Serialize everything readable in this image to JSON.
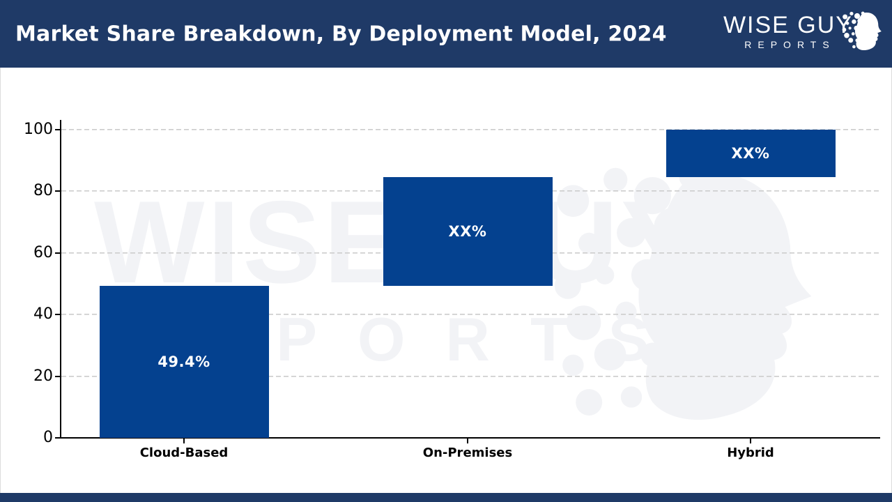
{
  "header": {
    "title": "Market Share Breakdown, By Deployment Model, 2024",
    "logo": {
      "line1": "WISE GUY",
      "line2": "REPORTS"
    }
  },
  "watermark": {
    "line1": "WISE GUY",
    "line2": "REPORTS"
  },
  "colors": {
    "banner": "#1F3A67",
    "bar": "#04418F",
    "bar_label": "#FFFFFF",
    "gridline": "#CCCCCC",
    "axis": "#000000",
    "watermark": "#F2F3F6"
  },
  "chart_data": {
    "type": "bar",
    "subtype": "stacked-waterfall",
    "title": "Market Share Breakdown, By Deployment Model, 2024",
    "categories": [
      "Cloud-Based",
      "On-Premises",
      "Hybrid"
    ],
    "segments": [
      {
        "category": "Cloud-Based",
        "start": 0,
        "end": 49.4,
        "value": 49.4,
        "label": "49.4%"
      },
      {
        "category": "On-Premises",
        "start": 49.4,
        "end": 84.6,
        "value": 35.2,
        "label": "XX%"
      },
      {
        "category": "Hybrid",
        "start": 84.6,
        "end": 100,
        "value": 15.4,
        "label": "XX%"
      }
    ],
    "xlabel": "",
    "ylabel": "",
    "ylim": [
      0,
      100
    ],
    "yticks": [
      0,
      20,
      40,
      60,
      80,
      100
    ],
    "grid": "horizontal-dashed",
    "legend": "none"
  }
}
